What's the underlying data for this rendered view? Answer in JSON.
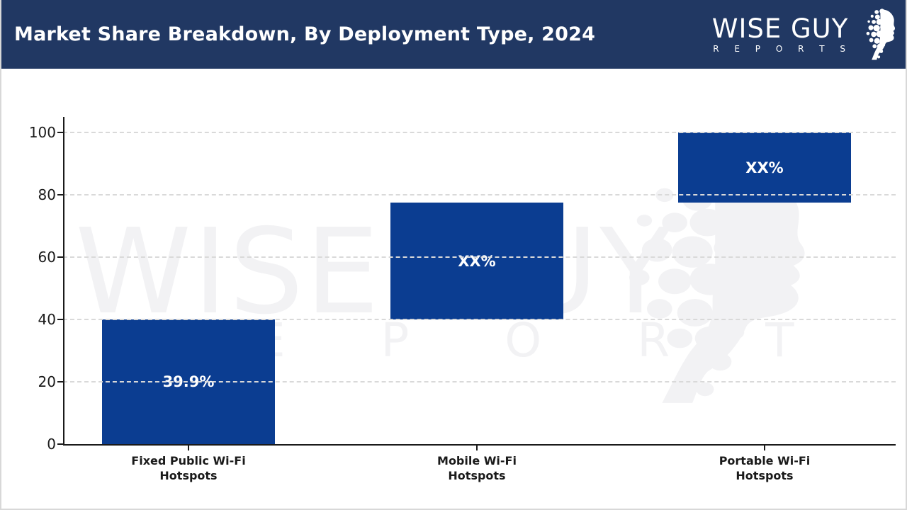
{
  "header": {
    "title": "Market Share Breakdown, By Deployment Type, 2024",
    "bg_color": "#213863",
    "logo": {
      "line1": "WISE GUY",
      "line2": "R E P O R T S",
      "head_icon": "dotted-face-profile"
    }
  },
  "watermark": {
    "line1": "WISE GUY",
    "line2": "R E P O R T S",
    "head_icon": "dotted-face-profile",
    "color": "#f2f2f4"
  },
  "colors": {
    "header_bg": "#213863",
    "bar_fill": "#0b3d91",
    "bar_label": "#ffffff",
    "grid": "#d9d9d9",
    "axis": "#1a1a1a",
    "page_border": "#d8d8d8"
  },
  "chart_data": {
    "type": "bar",
    "subtype": "waterfall",
    "title": "Market Share Breakdown, By Deployment Type, 2024",
    "categories": [
      [
        "Fixed Public Wi-Fi",
        "Hotspots"
      ],
      [
        "Mobile Wi-Fi",
        "Hotspots"
      ],
      [
        "Portable Wi-Fi",
        "Hotspots"
      ]
    ],
    "segments": [
      {
        "category": "Fixed Public Wi-Fi Hotspots",
        "start": 0,
        "end": 39.9,
        "label": "39.9%"
      },
      {
        "category": "Mobile Wi-Fi Hotspots",
        "start": 39.9,
        "end": 77.5,
        "label": "XX%"
      },
      {
        "category": "Portable Wi-Fi Hotspots",
        "start": 77.5,
        "end": 100,
        "label": "XX%"
      }
    ],
    "yticks": [
      0,
      20,
      40,
      60,
      80,
      100
    ],
    "ylim": [
      0,
      105
    ],
    "xlabel": "",
    "ylabel": "",
    "legend": null,
    "grid": {
      "show": true,
      "style": "dashed",
      "lines_over_bars": true
    }
  }
}
